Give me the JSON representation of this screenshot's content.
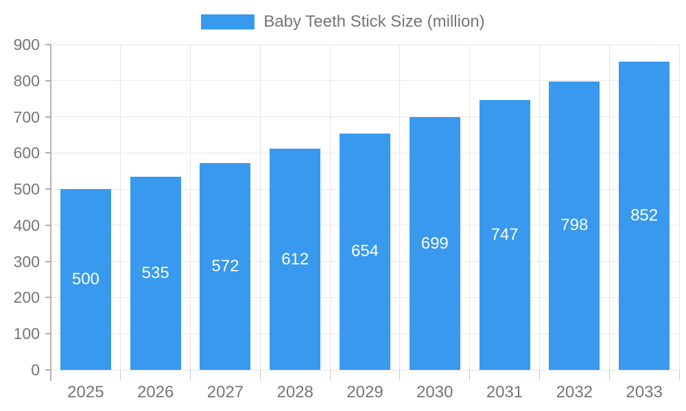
{
  "chart_data": {
    "type": "bar",
    "title": "Baby Teeth Stick Size (million)",
    "series_name": "Baby Teeth Stick Size (million)",
    "categories": [
      "2025",
      "2026",
      "2027",
      "2028",
      "2029",
      "2030",
      "2031",
      "2032",
      "2033"
    ],
    "values": [
      500,
      535,
      572,
      612,
      654,
      699,
      747,
      798,
      852
    ],
    "xlabel": "",
    "ylabel": "",
    "ylim": [
      0,
      900
    ],
    "yticks": [
      0,
      100,
      200,
      300,
      400,
      500,
      600,
      700,
      800,
      900
    ],
    "grid": true,
    "legend_position": "top",
    "value_label_position": "inside-center"
  },
  "colors": {
    "bar": "#3899EE",
    "axis_label": "#757575",
    "value_label": "#ffffff",
    "gridline": "#e6e6e6",
    "axis_line": "#b0b0b0",
    "tick": "#c9c9c9",
    "background": "#ffffff"
  }
}
